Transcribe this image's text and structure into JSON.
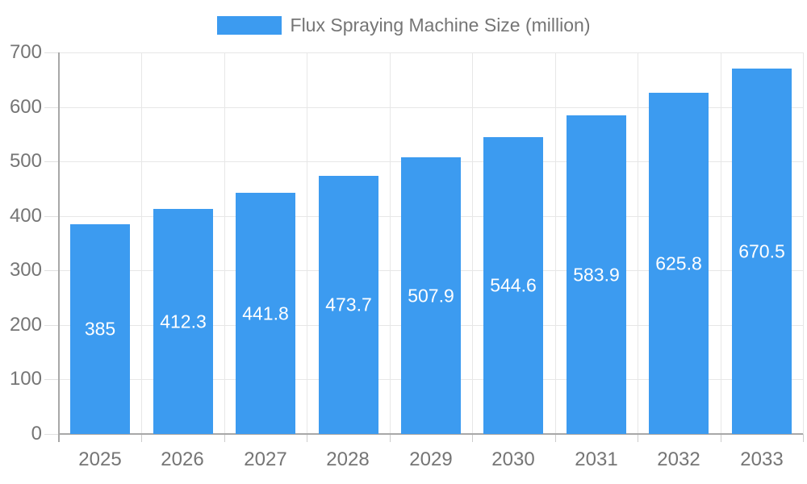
{
  "chart_data": {
    "type": "bar",
    "title": "Flux Spraying Machine Size (million)",
    "categories": [
      "2025",
      "2026",
      "2027",
      "2028",
      "2029",
      "2030",
      "2031",
      "2032",
      "2033"
    ],
    "values": [
      385,
      412.3,
      441.8,
      473.7,
      507.9,
      544.6,
      583.9,
      625.8,
      670.5
    ],
    "value_labels": [
      "385",
      "412.3",
      "441.8",
      "473.7",
      "507.9",
      "544.6",
      "583.9",
      "625.8",
      "670.5"
    ],
    "series_name": "Flux Spraying Machine Size (million)",
    "xlabel": "",
    "ylabel": "",
    "ylim": [
      0,
      700
    ],
    "yticks": [
      0,
      100,
      200,
      300,
      400,
      500,
      600,
      700
    ],
    "grid": true,
    "legend_position": "top",
    "bar_color": "#3C9BF0"
  },
  "colors": {
    "bar": "#3C9BF0",
    "grid": "#e7e7e7",
    "axis": "#a8a8a8",
    "ytick": "#e0e0e0",
    "xtick": "#cccccc",
    "axis_text": "#757575",
    "value_text": "#ffffff",
    "background": "#ffffff"
  }
}
